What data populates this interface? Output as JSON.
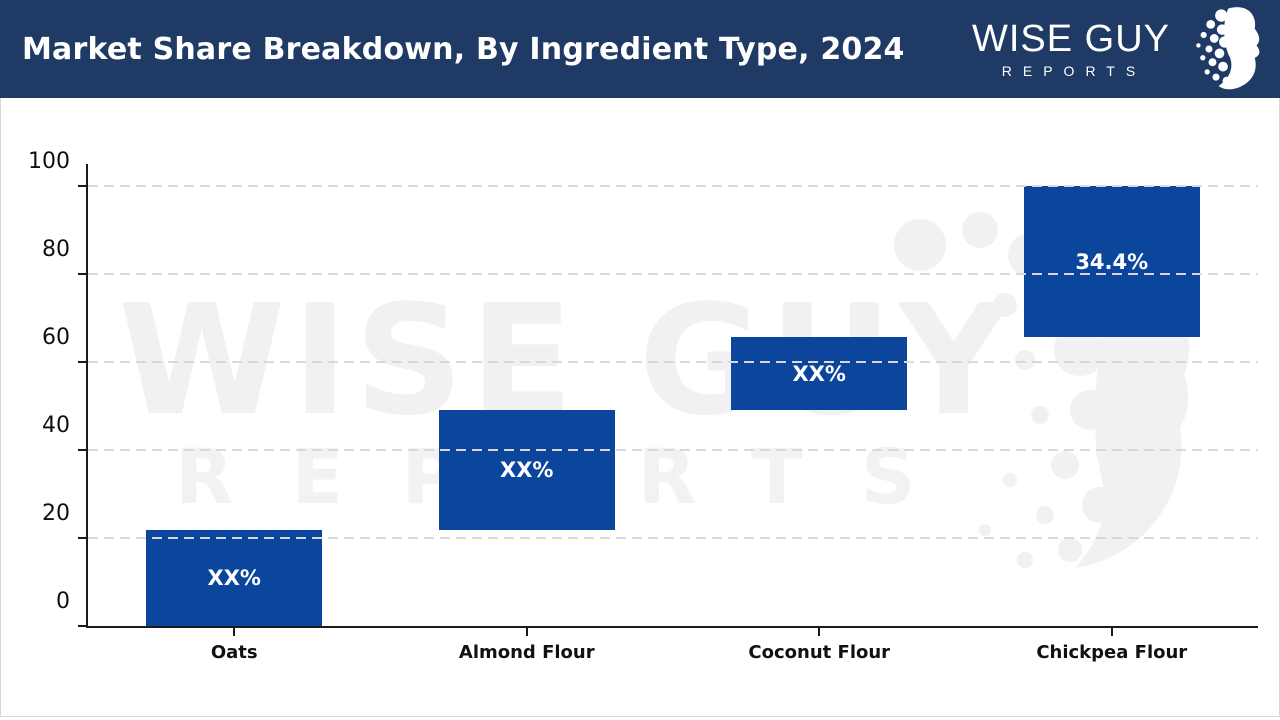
{
  "header": {
    "title": "Market Share Breakdown, By Ingredient Type, 2024",
    "logo_line1": "WISE GUY",
    "logo_line2": "REPORTS"
  },
  "watermark": {
    "line1": "WISE GUY",
    "line2": "REPORTS"
  },
  "colors": {
    "header_bg": "#203a66",
    "bar_fill": "#0b469c",
    "grid": "#d9d9d9",
    "axis": "#1a1a1a",
    "watermark": "#f1f1f4",
    "title_text": "#ffffff",
    "bar_label_text": "#ffffff"
  },
  "chart_data": {
    "type": "bar",
    "subtype": "floating-waterfall",
    "title": "Market Share Breakdown, By Ingredient Type, 2024",
    "categories": [
      "Oats",
      "Almond Flour",
      "Coconut Flour",
      "Chickpea Flour"
    ],
    "bars": [
      {
        "category": "Oats",
        "start": 0,
        "end": 21.8,
        "value": 21.8,
        "label": "XX%"
      },
      {
        "category": "Almond Flour",
        "start": 21.8,
        "end": 49.1,
        "value": 27.3,
        "label": "XX%"
      },
      {
        "category": "Coconut Flour",
        "start": 49.1,
        "end": 65.6,
        "value": 16.5,
        "label": "XX%"
      },
      {
        "category": "Chickpea Flour",
        "start": 65.6,
        "end": 100,
        "value": 34.4,
        "label": "34.4%"
      }
    ],
    "yticks": [
      0,
      20,
      40,
      60,
      80,
      100
    ],
    "ylim": [
      0,
      105
    ],
    "xlabel": "",
    "ylabel": "",
    "grid": "horizontal-dashed",
    "grid_above_bars": true,
    "legend": "none"
  }
}
